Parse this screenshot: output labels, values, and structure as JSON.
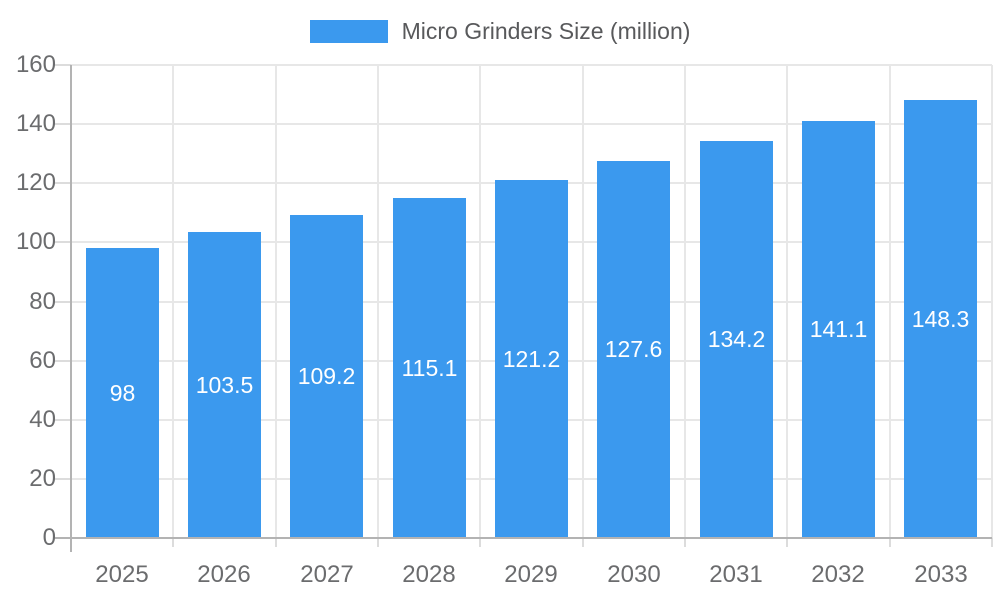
{
  "legend": {
    "label": "Micro Grinders Size (million)"
  },
  "chart_data": {
    "type": "bar",
    "title": "Micro Grinders Size (million)",
    "series_name": "Micro Grinders Size (million)",
    "categories": [
      "2025",
      "2026",
      "2027",
      "2028",
      "2029",
      "2030",
      "2031",
      "2032",
      "2033"
    ],
    "values": [
      98,
      103.5,
      109.2,
      115.1,
      121.2,
      127.6,
      134.2,
      141.1,
      148.3
    ],
    "value_labels": [
      "98",
      "103.5",
      "109.2",
      "115.1",
      "121.2",
      "127.6",
      "134.2",
      "141.1",
      "148.3"
    ],
    "xlabel": "",
    "ylabel": "",
    "ylim": [
      0,
      160
    ],
    "yticks": [
      0,
      20,
      40,
      60,
      80,
      100,
      120,
      140,
      160
    ],
    "grid": true,
    "legend_position": "top",
    "value_labels_inside_bars": true
  },
  "colors": {
    "bar": "#3B99EE",
    "bar_value_text": "#FFFFFF",
    "grid": "#E7E7E7",
    "tick": "#DCDCDC",
    "axis": "#B3B3B3",
    "axis_text": "#6B6C6E",
    "legend_text": "#58595B",
    "background": "#FFFFFF"
  }
}
